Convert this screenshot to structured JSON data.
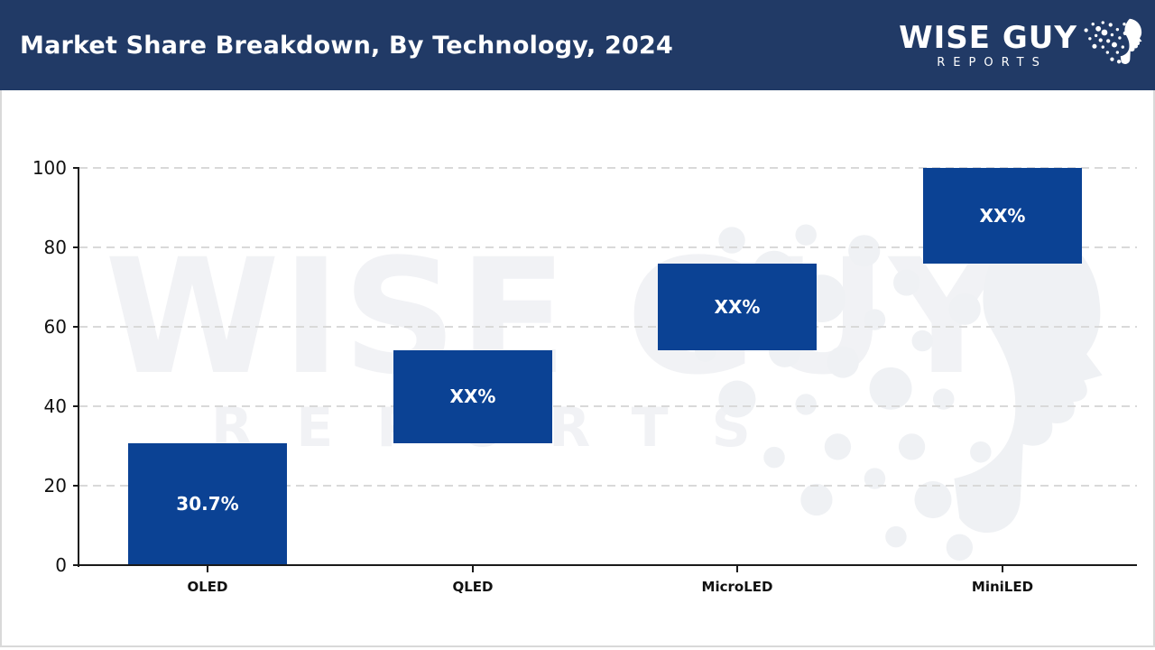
{
  "header": {
    "title": "Market Share Breakdown, By Technology, 2024",
    "bg_color": "#213A66",
    "logo": {
      "line1": "WISE GUY",
      "line2": "REPORTS"
    }
  },
  "watermark": {
    "line1": "WISE GUY",
    "line2": "REPORTS"
  },
  "chart_data": {
    "type": "bar",
    "subtype": "waterfall",
    "title": "Market Share Breakdown, By Technology, 2024",
    "categories": [
      "OLED",
      "QLED",
      "MicroLED",
      "MiniLED"
    ],
    "segments": [
      {
        "category": "OLED",
        "base": 0,
        "top": 30.7,
        "label": "30.7%"
      },
      {
        "category": "QLED",
        "base": 30.7,
        "top": 54.1,
        "label": "XX%"
      },
      {
        "category": "MicroLED",
        "base": 54.1,
        "top": 75.9,
        "label": "XX%"
      },
      {
        "category": "MiniLED",
        "base": 75.9,
        "top": 100,
        "label": "XX%"
      }
    ],
    "xlabel": "",
    "ylabel": "",
    "ylim": [
      0,
      100
    ],
    "yticks": [
      0,
      20,
      40,
      60,
      80,
      100
    ],
    "grid": "horizontal dashed",
    "legend": "none",
    "bar_color": "#0B4294",
    "value_label_color": "#FFFFFF",
    "axis_color": "#1a1a1a",
    "gridline_color": "#d9d9d9"
  }
}
